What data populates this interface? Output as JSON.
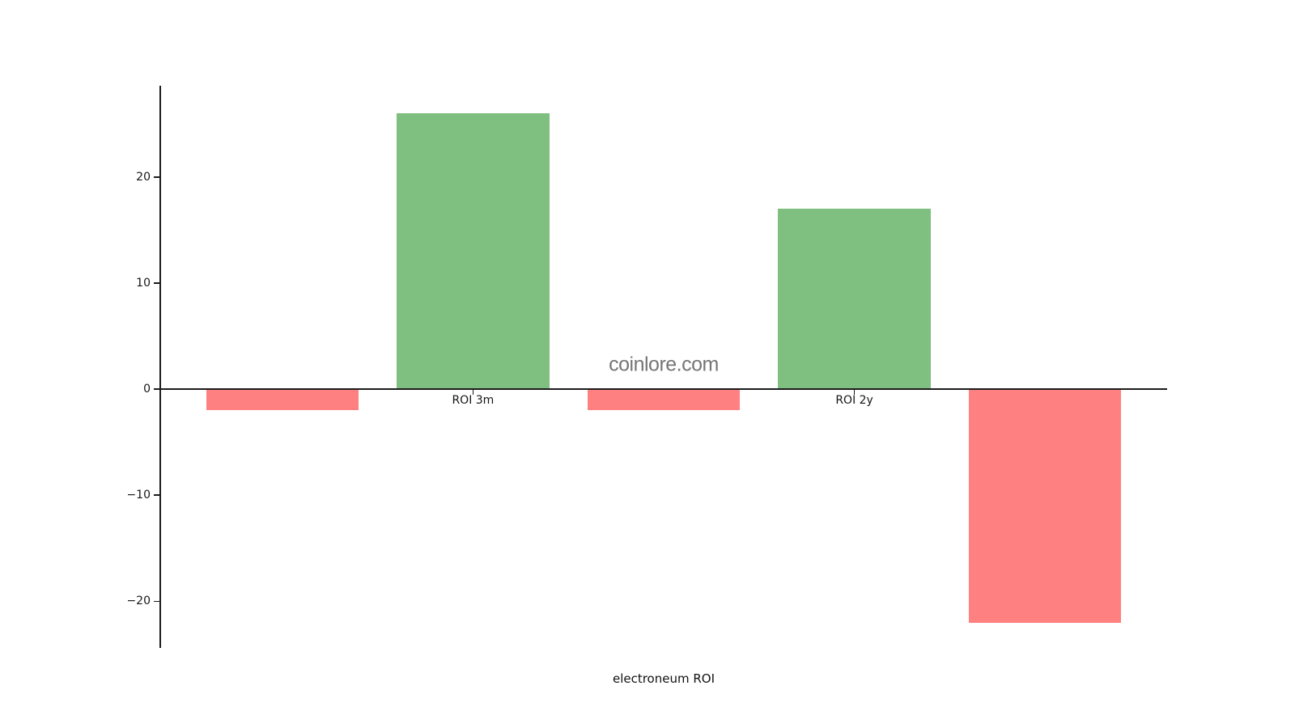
{
  "chart_data": {
    "type": "bar",
    "title": "electroneum ROI",
    "watermark": "coinlore.com",
    "categories": [
      "",
      "ROI 3m",
      "",
      "ROI 2y",
      ""
    ],
    "values": [
      -2,
      26,
      -2,
      17,
      -22
    ],
    "series": [
      {
        "name": "electroneum ROI",
        "values": [
          -2,
          26,
          -2,
          17,
          -22
        ]
      }
    ],
    "xlabel": "electroneum ROI",
    "ylabel": "",
    "y_ticks": [
      20,
      10,
      0,
      -10,
      -20
    ],
    "ylim": [
      -24.4,
      28.6
    ],
    "xlim": [
      -0.64,
      4.64
    ],
    "bar_width": 0.8,
    "grid": false,
    "legend": false,
    "positive_color": "#7fbf7f",
    "negative_color": "#ff8080",
    "axis_color": "#1c1c1c",
    "watermark_color": "#757575"
  }
}
